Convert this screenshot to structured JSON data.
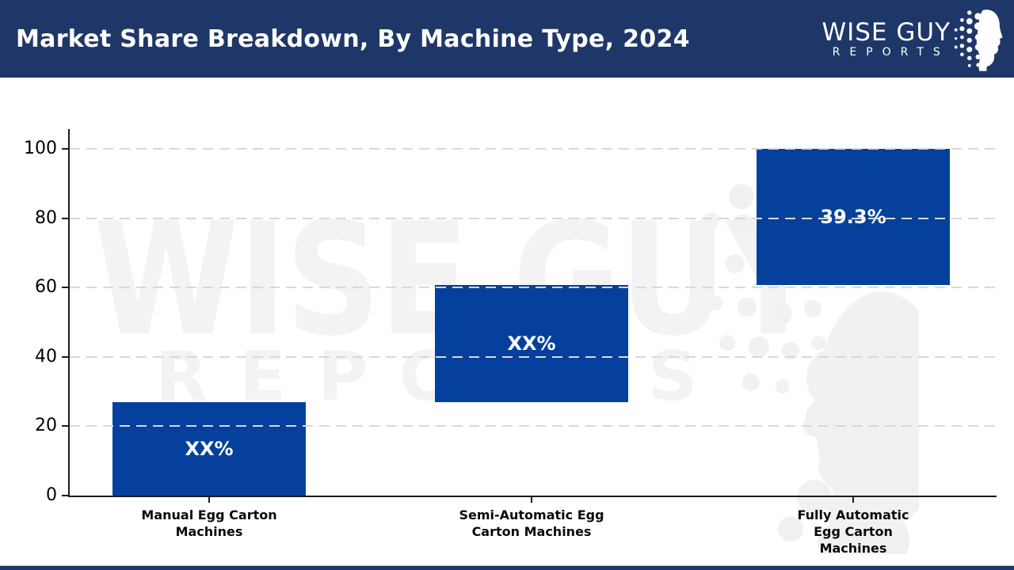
{
  "header": {
    "title": "Market Share Breakdown, By Machine Type, 2024",
    "logo": {
      "name_line": "WISE GUY",
      "sub_line": "REPORTS"
    }
  },
  "watermark": {
    "name_line": "WISE GUY",
    "sub_line": "REPORTS"
  },
  "chart_data": {
    "type": "bar",
    "subtype": "waterfall",
    "title": "Market Share Breakdown, By Machine Type, 2024",
    "categories": [
      "Manual Egg Carton Machines",
      "Semi-Automatic Egg Carton Machines",
      "Fully Automatic Egg Carton Machines"
    ],
    "category_label_lines": [
      [
        "Manual Egg Carton",
        "Machines"
      ],
      [
        "Semi-Automatic Egg",
        "Carton Machines"
      ],
      [
        "Fully Automatic",
        "Egg Carton",
        "Machines"
      ]
    ],
    "segments": [
      {
        "category": "Manual Egg Carton Machines",
        "start": 0,
        "end": 27,
        "value_label": "XX%"
      },
      {
        "category": "Semi-Automatic Egg Carton Machines",
        "start": 27,
        "end": 60.7,
        "value_label": "XX%"
      },
      {
        "category": "Fully Automatic Egg Carton Machines",
        "start": 60.7,
        "end": 100,
        "value_label": "39.3%"
      }
    ],
    "ylim": [
      0,
      100
    ],
    "yticks": [
      0,
      20,
      40,
      60,
      80,
      100
    ],
    "xlabel": "",
    "ylabel": "",
    "grid": "horizontal-dashed",
    "legend": "none",
    "colors": {
      "bar": "#05419c",
      "grid": "#d8d8d8",
      "axis": "#1c1c1c",
      "bar_label": "#ffffff",
      "header_bg": "#1f3768",
      "watermark": "#f1f1f2"
    }
  }
}
